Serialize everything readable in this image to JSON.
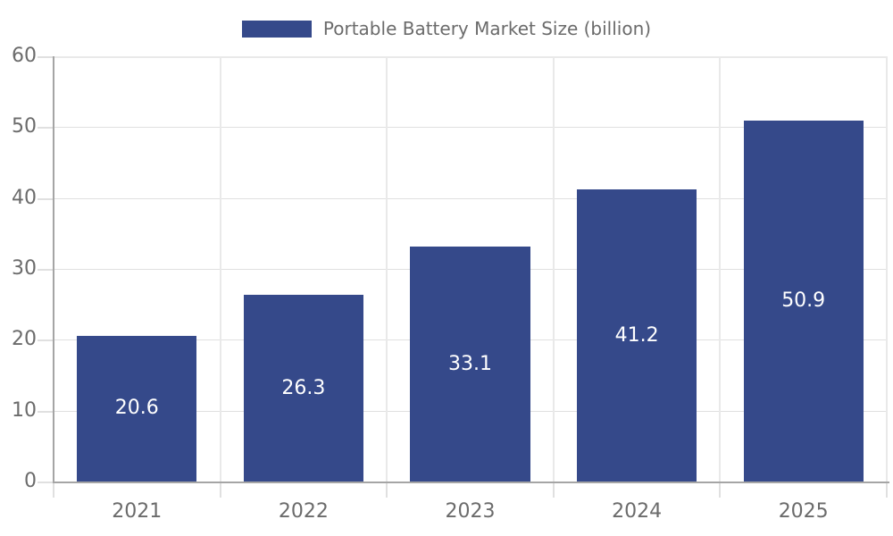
{
  "legend": {
    "items": [
      {
        "label": "Portable Battery Market Size (billion)",
        "color": "#35498a"
      }
    ]
  },
  "chart_data": {
    "type": "bar",
    "title": "Portable Battery Market Size (billion)",
    "series_name": "Portable Battery Market Size (billion)",
    "categories": [
      "2021",
      "2022",
      "2023",
      "2024",
      "2025"
    ],
    "values": [
      20.6,
      26.3,
      33.1,
      41.2,
      50.9
    ],
    "value_labels": [
      "20.6",
      "26.3",
      "33.1",
      "41.2",
      "50.9"
    ],
    "xlabel": "",
    "ylabel": "",
    "ylim": [
      0,
      60
    ],
    "y_ticks": [
      0,
      10,
      20,
      30,
      40,
      50,
      60
    ],
    "grid": true,
    "legend_position": "top-center",
    "value_label_position": "inside-center",
    "colors": {
      "bar": "#35498a",
      "value_label": "#ffffff",
      "grid_line": "#e0e0e0",
      "grid_line_vertical": "#e9e9e9",
      "axis_line": "#a5a5a5",
      "tick_label": "#6b6b6b",
      "legend_text": "#6b6b6b",
      "background": "#ffffff"
    }
  }
}
